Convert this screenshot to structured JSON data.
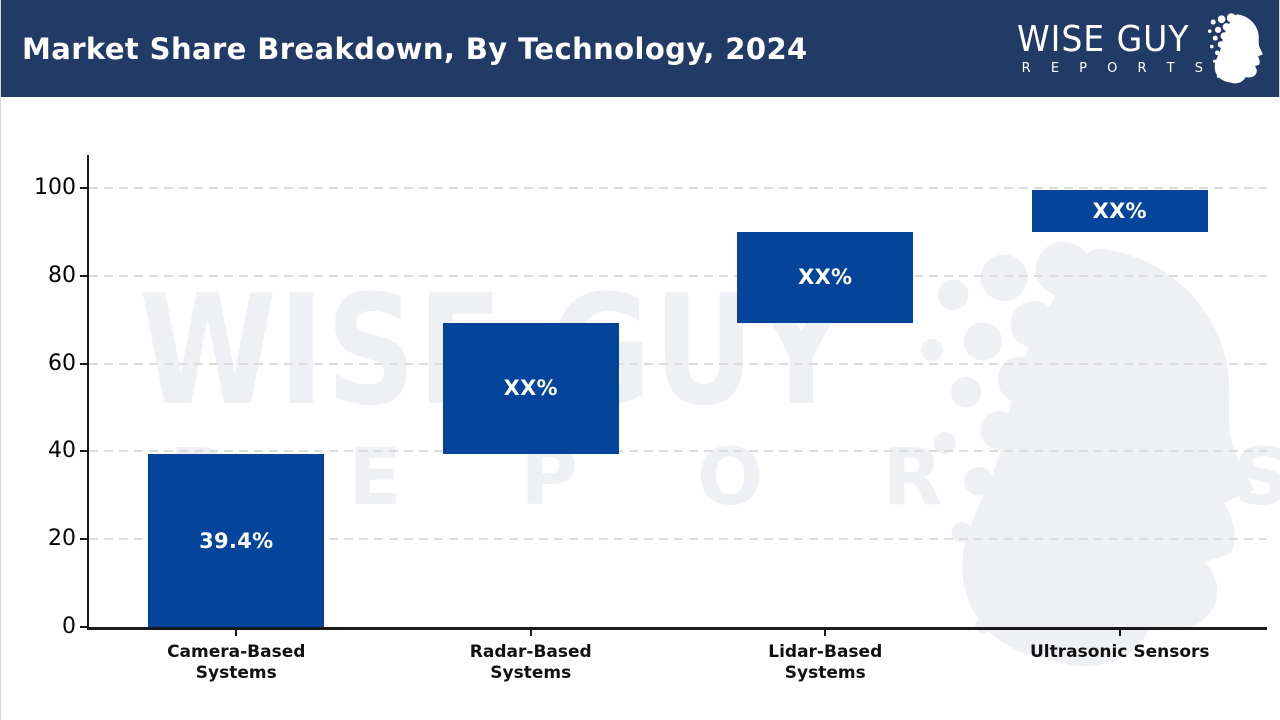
{
  "header": {
    "title": "Market Share Breakdown, By Technology, 2024",
    "logo": {
      "wordmark": "WISE GUY",
      "subtext": "R E P O R T S"
    }
  },
  "watermark": {
    "wordmark": "WISE GUY",
    "subtext": "R E P O R T S"
  },
  "chart_data": {
    "type": "bar",
    "variant": "waterfall",
    "title": "Market Share Breakdown, By Technology, 2024",
    "categories": [
      "Camera-Based\nSystems",
      "Radar-Based\nSystems",
      "Lidar-Based\nSystems",
      "Ultrasonic Sensors"
    ],
    "segments": [
      {
        "category": "Camera-Based Systems",
        "start": 0,
        "end": 39.4,
        "label": "39.4%"
      },
      {
        "category": "Radar-Based Systems",
        "start": 39.4,
        "end": 69.3,
        "label": "XX%"
      },
      {
        "category": "Lidar-Based Systems",
        "start": 69.3,
        "end": 90.0,
        "label": "XX%"
      },
      {
        "category": "Ultrasonic Sensors",
        "start": 90.0,
        "end": 99.5,
        "label": "XX%"
      }
    ],
    "yticks": [
      0,
      20,
      40,
      60,
      80,
      100
    ],
    "ylim": [
      0,
      107
    ],
    "xlabel": "",
    "ylabel": "",
    "grid": "horizontal-dashed",
    "legend": null,
    "colors": {
      "bar": "#04449B",
      "bar_label": "#FFFFFF",
      "grid": "#DCDCDC",
      "axis": "#1A1A1A",
      "tick_label": "#000000",
      "header_bg": "#223A66",
      "watermark": "#EFF0F3"
    }
  }
}
